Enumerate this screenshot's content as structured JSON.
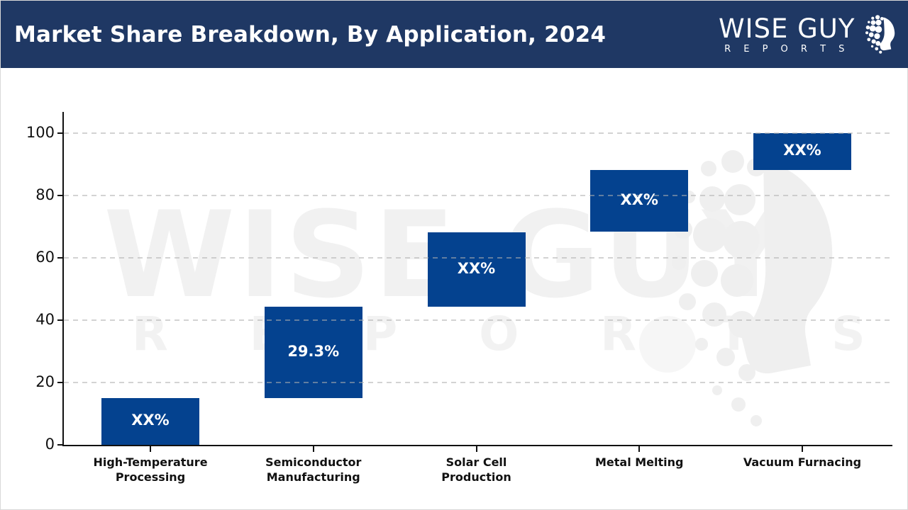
{
  "header": {
    "title": "Market Share Breakdown, By Application, 2024",
    "logo": {
      "line1": "WISE GUY",
      "line2": "R E P O R T S"
    }
  },
  "watermark": {
    "line1": "WISE GUY",
    "line2": "R E P O R T S"
  },
  "colors": {
    "header_bg": "#1f3864",
    "bar": "#04428f",
    "bar_label_text": "#ffffff",
    "axis": "#111111",
    "gridline": "#d9d9d9",
    "watermark": "#f1f1f1"
  },
  "chart_data": {
    "type": "bar",
    "subtype": "floating-waterfall",
    "title": "Market Share Breakdown, By Application, 2024",
    "categories": [
      "High-Temperature Processing",
      "Semiconductor Manufacturing",
      "Solar Cell Production",
      "Metal Melting",
      "Vacuum Furnacing"
    ],
    "bars": [
      {
        "category": "High-Temperature Processing",
        "tick_lines": [
          "High-Temperature",
          "Processing"
        ],
        "start": 0,
        "end": 15,
        "label": "XX%"
      },
      {
        "category": "Semiconductor Manufacturing",
        "tick_lines": [
          "Semiconductor",
          "Manufacturing"
        ],
        "start": 15,
        "end": 44.3,
        "label": "29.3%",
        "value": 29.3
      },
      {
        "category": "Solar Cell Production",
        "tick_lines": [
          "Solar Cell",
          "Production"
        ],
        "start": 44.3,
        "end": 68.2,
        "label": "XX%"
      },
      {
        "category": "Metal Melting",
        "tick_lines": [
          "Metal Melting"
        ],
        "start": 68.3,
        "end": 88.1,
        "label": "XX%"
      },
      {
        "category": "Vacuum Furnacing",
        "tick_lines": [
          "Vacuum Furnacing"
        ],
        "start": 88.1,
        "end": 100,
        "label": "XX%"
      }
    ],
    "xlabel": "",
    "ylabel": "",
    "ylim": [
      0,
      100
    ],
    "yticks": [
      0,
      20,
      40,
      60,
      80,
      100
    ],
    "grid": {
      "horizontal": true,
      "style": "dashed"
    },
    "legend": null
  }
}
